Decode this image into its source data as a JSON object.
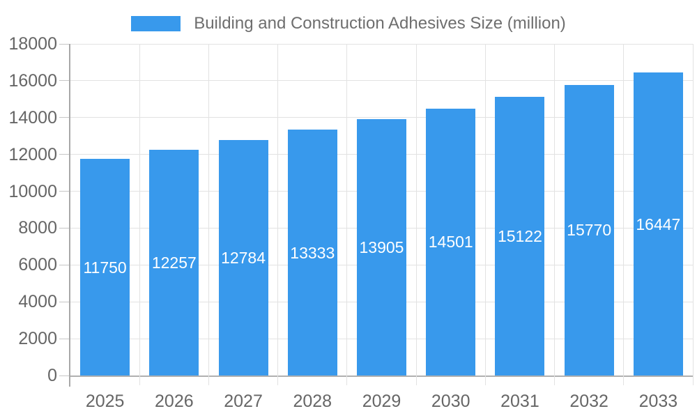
{
  "chart_data": {
    "type": "bar",
    "title": "Building and Construction Adhesives Size (million)",
    "categories": [
      "2025",
      "2026",
      "2027",
      "2028",
      "2029",
      "2030",
      "2031",
      "2032",
      "2033"
    ],
    "values": [
      11750,
      12257,
      12784,
      13333,
      13905,
      14501,
      15122,
      15770,
      16447
    ],
    "series": [
      {
        "name": "Building and Construction Adhesives Size (million)",
        "values": [
          11750,
          12257,
          12784,
          13333,
          13905,
          14501,
          15122,
          15770,
          16447
        ]
      }
    ],
    "xlabel": "",
    "ylabel": "",
    "ylim": [
      0,
      18000
    ],
    "ytick_step": 2000,
    "ytick_labels": [
      "0",
      "2000",
      "4000",
      "6000",
      "8000",
      "10000",
      "12000",
      "14000",
      "16000",
      "18000"
    ],
    "grid": true,
    "legend_position": "top-center",
    "bar_value_labels_inside": true,
    "colors": {
      "bar": "#3899ec",
      "bar_label": "#ffffff",
      "axis_text": "#666666",
      "legend_text": "#6e6e6e",
      "gridline": "#e2e2e2",
      "axis_line": "#a8a8a8",
      "tick": "#c6c6c6"
    }
  },
  "legend": {
    "label": "Building and Construction Adhesives Size (million)"
  }
}
